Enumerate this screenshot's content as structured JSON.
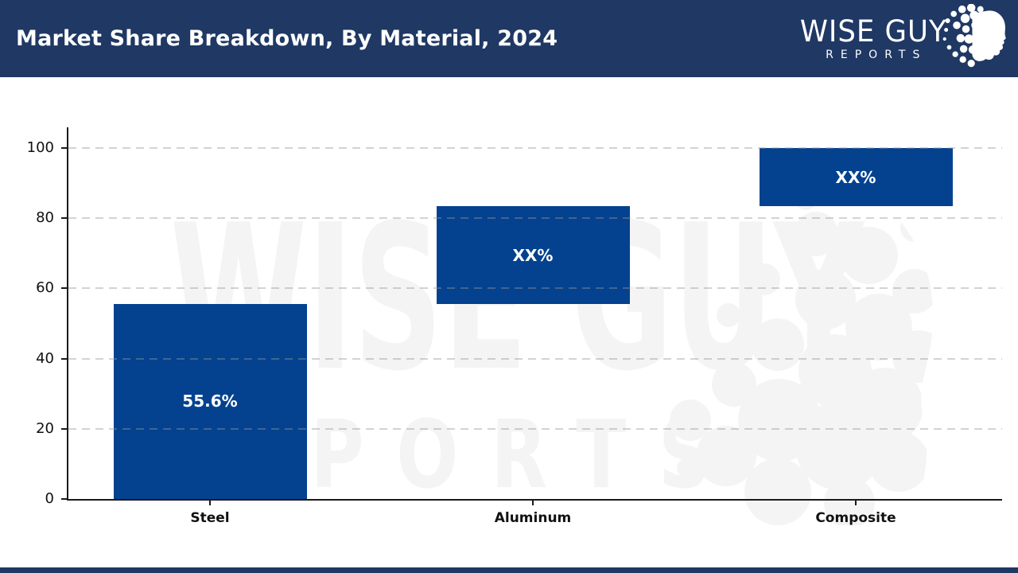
{
  "header": {
    "title": "Market Share Breakdown, By Material, 2024",
    "logo": {
      "name_top": "WISE GUY",
      "name_bottom": "REPORTS"
    }
  },
  "watermark": {
    "line1": "WISE GUY",
    "line2": "REPORTS"
  },
  "chart_data": {
    "type": "bar",
    "subtype": "waterfall",
    "title": "Market Share Breakdown, By Material, 2024",
    "categories": [
      "Steel",
      "Aluminum",
      "Composite"
    ],
    "segments": [
      {
        "category": "Steel",
        "label": "55.6%",
        "start": 0,
        "end": 55.6
      },
      {
        "category": "Aluminum",
        "label": "XX%",
        "start": 55.6,
        "end": 83.4
      },
      {
        "category": "Composite",
        "label": "XX%",
        "start": 83.4,
        "end": 100
      }
    ],
    "xlabel": "",
    "ylabel": "",
    "ylim": [
      0,
      100
    ],
    "yticks": [
      0,
      20,
      40,
      60,
      80,
      100
    ],
    "grid": "horizontal-dashed",
    "legend": "none"
  },
  "colors": {
    "header_bg": "#1f3864",
    "footer_bg": "#1f3864",
    "bar": "#04428f",
    "bar_label": "#ffffff",
    "grid": "#d9d9d9",
    "axis": "#1a1a1a",
    "watermark": "#f4f4f4",
    "title_text": "#ffffff"
  }
}
